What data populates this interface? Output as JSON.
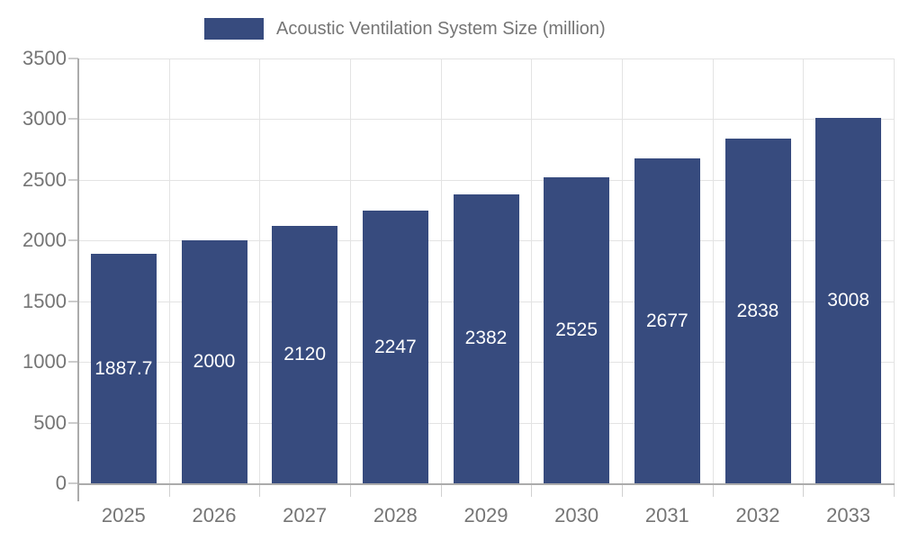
{
  "legend": {
    "label": "Acoustic Ventilation System Size (million)"
  },
  "colors": {
    "bar": "#374B7E",
    "bar_label": "#ffffff",
    "grid": "#e3e3e3",
    "axis": "#ababab",
    "tick": "#cccccc",
    "text": "#757575",
    "background": "#ffffff"
  },
  "chart_data": {
    "type": "bar",
    "categories": [
      "2025",
      "2026",
      "2027",
      "2028",
      "2029",
      "2030",
      "2031",
      "2032",
      "2033"
    ],
    "series": [
      {
        "name": "Acoustic Ventilation System Size (million)",
        "values": [
          1887.7,
          2000,
          2120,
          2247,
          2382,
          2525,
          2677,
          2838,
          3008
        ]
      }
    ],
    "value_labels": [
      "1887.7",
      "2000",
      "2120",
      "2247",
      "2382",
      "2525",
      "2677",
      "2838",
      "3008"
    ],
    "title": "",
    "xlabel": "",
    "ylabel": "",
    "ylim": [
      0,
      3500
    ],
    "yticks": [
      0,
      500,
      1000,
      1500,
      2000,
      2500,
      3000,
      3500
    ],
    "grid": true,
    "legend_position": "top",
    "value_label_position": "inside-center"
  }
}
